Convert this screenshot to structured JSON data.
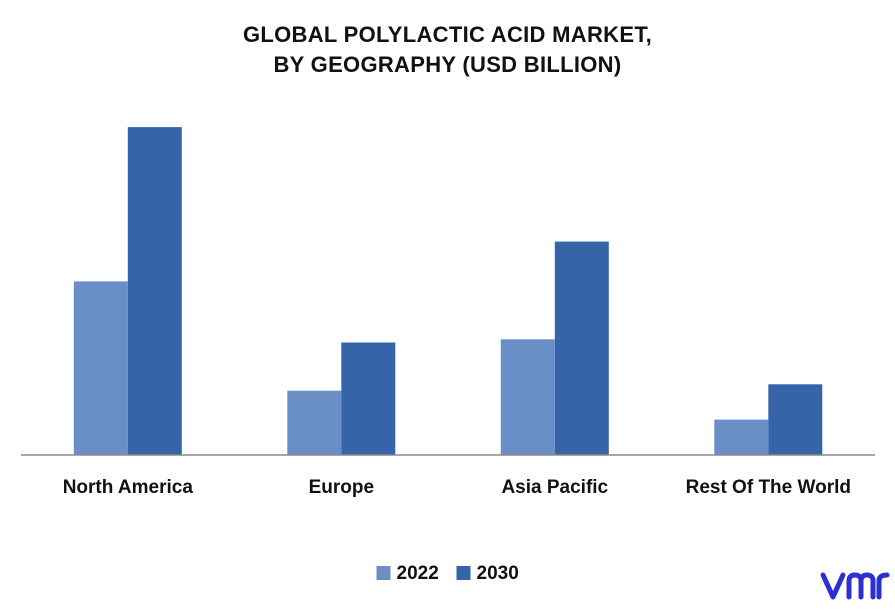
{
  "chart_data": {
    "type": "bar",
    "title_lines": [
      "GLOBAL POLYLACTIC ACID MARKET,",
      "BY GEOGRAPHY (USD BILLION)"
    ],
    "categories": [
      "North America",
      "Europe",
      "Asia Pacific",
      "Rest Of The World"
    ],
    "series": [
      {
        "name": "2022",
        "color": "#6a8fc7",
        "values": [
          2.7,
          1.0,
          1.8,
          0.55
        ]
      },
      {
        "name": "2030",
        "color": "#3565a8",
        "values": [
          5.1,
          1.75,
          3.32,
          1.1
        ]
      }
    ],
    "ylim": [
      0,
      5.6
    ],
    "grid": false,
    "legend_position": "bottom"
  },
  "logo": {
    "icon": "vmr-logo-icon",
    "color": "#2a2fd6"
  }
}
